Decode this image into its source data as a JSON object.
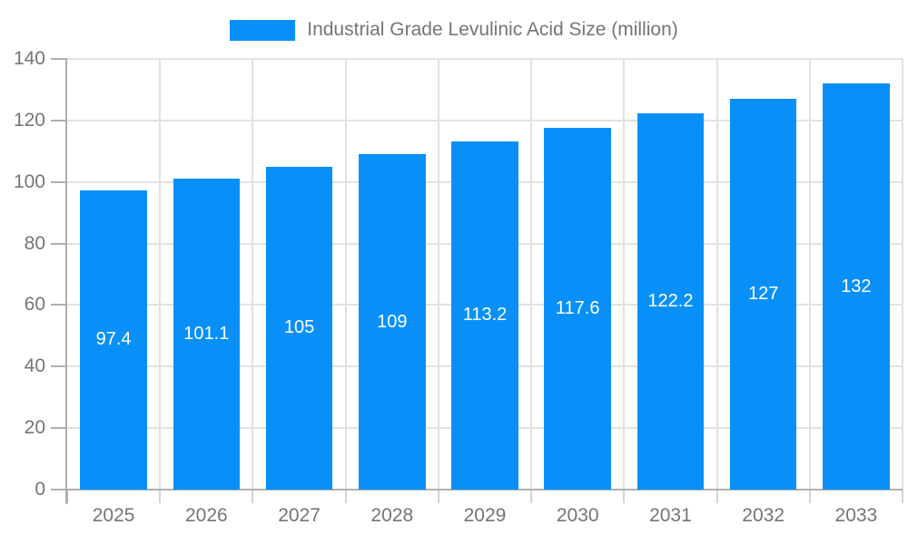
{
  "chart_data": {
    "type": "bar",
    "title": "Industrial Grade Levulinic Acid Size (million)",
    "categories": [
      "2025",
      "2026",
      "2027",
      "2028",
      "2029",
      "2030",
      "2031",
      "2032",
      "2033"
    ],
    "values": [
      97.4,
      101.1,
      105,
      109,
      113.2,
      117.6,
      122.2,
      127,
      132
    ],
    "xlabel": "",
    "ylabel": "",
    "ylim": [
      0,
      140
    ],
    "yticks": [
      0,
      20,
      40,
      60,
      80,
      100,
      120,
      140
    ],
    "grid": true,
    "legend_position": "top-center",
    "value_labels": "inside-center",
    "colors": {
      "bar": "#0890f8",
      "grid": "#e2e2e2",
      "axis": "#b0b0b0",
      "tick": "#d4d4d4",
      "text": "#757575",
      "value_label": "#ffffff",
      "background": "#ffffff"
    }
  }
}
